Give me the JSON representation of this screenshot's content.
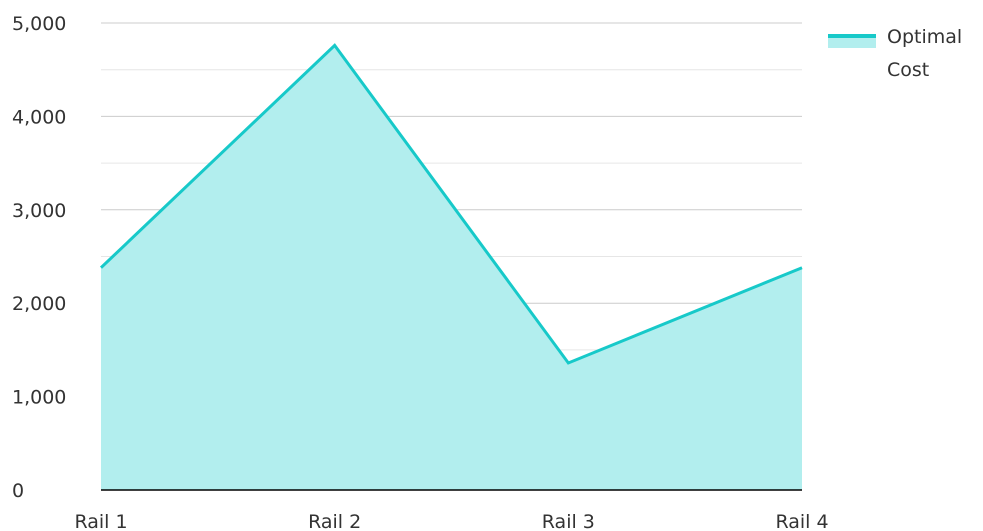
{
  "chart_data": {
    "type": "area",
    "categories": [
      "Rail 1",
      "Rail 2",
      "Rail 3",
      "Rail 4"
    ],
    "series": [
      {
        "name": "Optimal Cost",
        "values": [
          2380,
          4760,
          1360,
          2380
        ]
      }
    ],
    "ylim": [
      0,
      5000
    ],
    "y_ticks": [
      0,
      1000,
      2000,
      3000,
      4000,
      5000
    ],
    "y_tick_labels": [
      "0",
      "1,000",
      "2,000",
      "3,000",
      "4,000",
      "5,000"
    ],
    "legend": {
      "position": "top-right",
      "lines": [
        "Optimal",
        "Cost"
      ]
    },
    "grid": true,
    "colors": {
      "line": "#17c9c9",
      "fill": "#b2eeee",
      "grid_major": "#cccccc",
      "grid_minor": "#e6e6e6",
      "axis": "#000000",
      "text": "#333333"
    }
  }
}
